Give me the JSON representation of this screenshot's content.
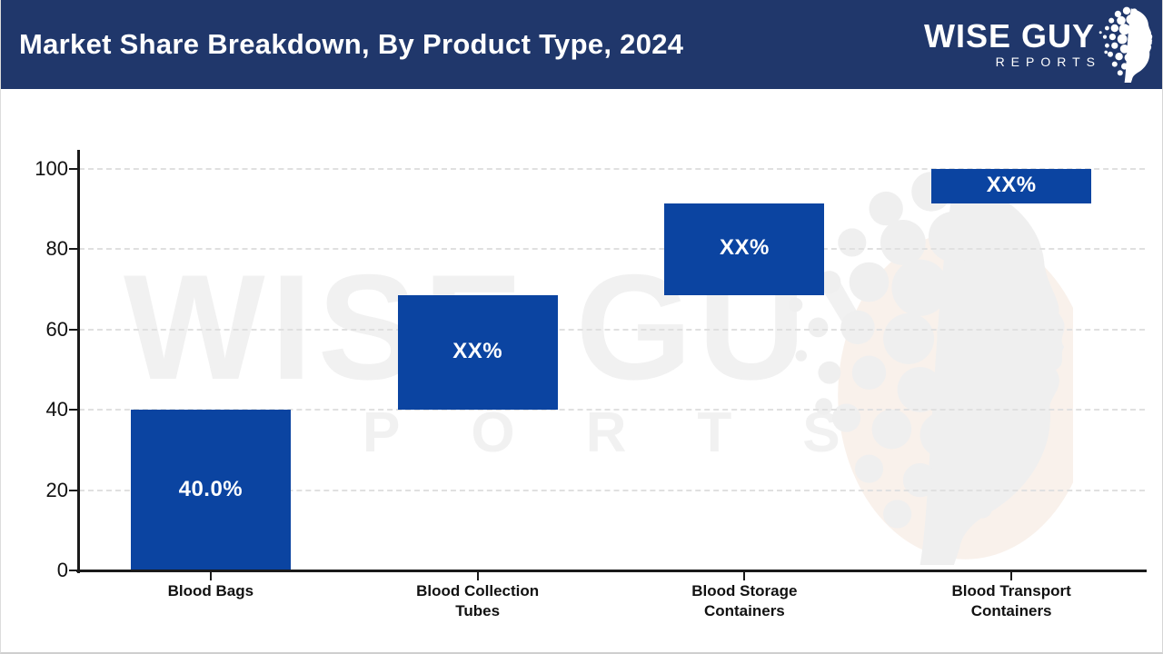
{
  "header": {
    "title": "Market Share Breakdown, By Product Type, 2024",
    "logo": {
      "name": "WISE GUY",
      "sub": "REPORTS"
    }
  },
  "watermark": {
    "line1": "WISE GUY",
    "line2": "PORTS"
  },
  "icons": {
    "logo_head": "dotted-face-profile",
    "watermark_head": "dotted-face-profile"
  },
  "colors": {
    "header_bg": "#20376b",
    "bar": "#0b44a1",
    "bar_label": "#ffffff",
    "gridline": "#e0e0e0",
    "watermark": "#f1f1f1"
  },
  "chart_data": {
    "type": "bar",
    "subtype": "waterfall",
    "title": "Market Share Breakdown, By Product Type, 2024",
    "categories": [
      "Blood Bags",
      "Blood Collection\nTubes",
      "Blood Storage\nContainers",
      "Blood Transport\nContainers"
    ],
    "series": [
      {
        "name": "Market Share",
        "segments": [
          {
            "category": "Blood Bags",
            "start": 0,
            "end": 40,
            "value": 40.0,
            "label": "40.0%"
          },
          {
            "category": "Blood Collection Tubes",
            "start": 40,
            "end": 68.5,
            "value": 28.5,
            "label": "XX%"
          },
          {
            "category": "Blood Storage Containers",
            "start": 68.5,
            "end": 91.5,
            "value": 23.0,
            "label": "XX%"
          },
          {
            "category": "Blood Transport Containers",
            "start": 91.5,
            "end": 100,
            "value": 8.5,
            "label": "XX%"
          }
        ]
      }
    ],
    "xlabel": "",
    "ylabel": "",
    "ylim": [
      0,
      100
    ],
    "yticks": [
      0,
      20,
      40,
      60,
      80,
      100
    ],
    "grid": "horizontal-dashed",
    "legend": "none"
  }
}
